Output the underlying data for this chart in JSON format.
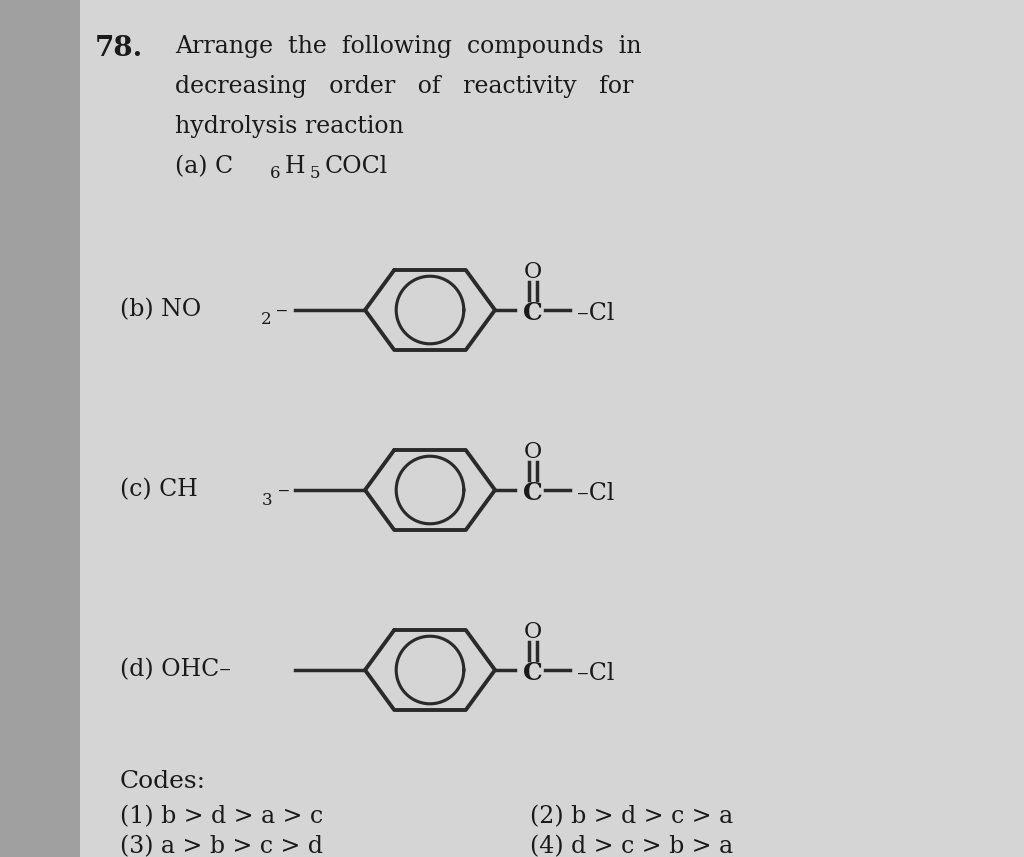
{
  "background_color": "#c8c8c8",
  "title_num": "78.",
  "text_color": "#1a1a1a",
  "ring_color": "#2a2a2a",
  "fig_width": 10.24,
  "fig_height": 8.57,
  "codes_label": "Codes:",
  "option1": "(1) b > d > a > c",
  "option2": "(2) b > d > c > a",
  "option3": "(3) a > b > c > d",
  "option4": "(4) d > c > b > a"
}
